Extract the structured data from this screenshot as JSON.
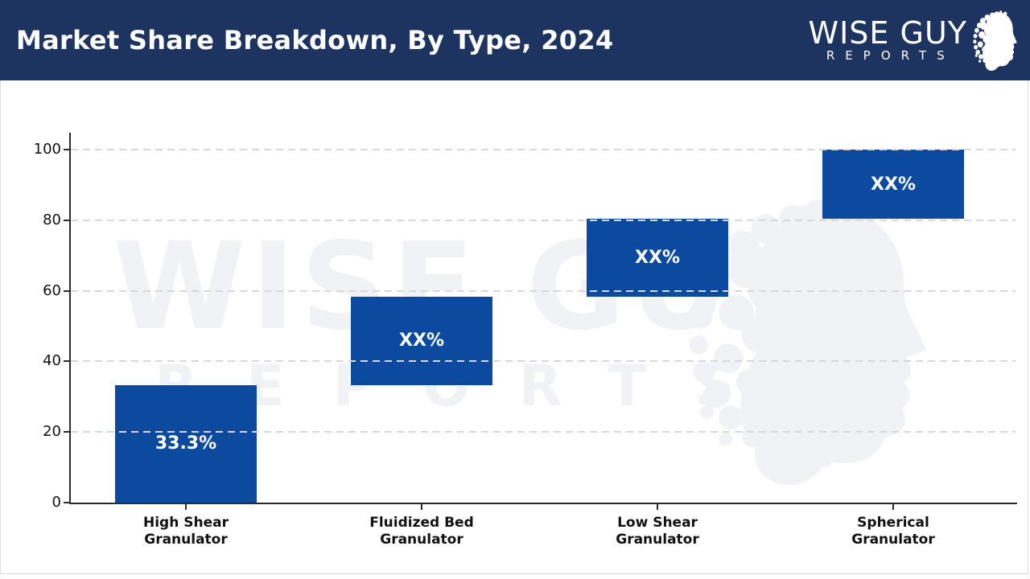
{
  "header": {
    "title": "Market Share Breakdown, By Type, 2024",
    "brand": {
      "name": "WISE GUY",
      "tagline": "REPORTS"
    },
    "colors": {
      "background": "#1d3360",
      "text": "#ffffff"
    }
  },
  "watermark": {
    "name": "WISE GUY",
    "tagline": "REPORTS"
  },
  "chart_data": {
    "type": "bar",
    "variant": "waterfall",
    "title": "Market Share Breakdown, By Type, 2024",
    "categories": [
      "High Shear Granulator",
      "Fluidized Bed Granulator",
      "Low Shear Granulator",
      "Spherical Granulator"
    ],
    "bars": [
      {
        "category": "High Shear Granulator",
        "label": "33.3%",
        "start": 0,
        "end": 33.3
      },
      {
        "category": "Fluidized Bed Granulator",
        "label": "XX%",
        "start": 33.3,
        "end": 58.3
      },
      {
        "category": "Low Shear Granulator",
        "label": "XX%",
        "start": 58.3,
        "end": 80.3
      },
      {
        "category": "Spherical Granulator",
        "label": "XX%",
        "start": 80.3,
        "end": 100
      }
    ],
    "xlabel": "",
    "ylabel": "",
    "ylim": [
      0,
      100
    ],
    "yticks": [
      0,
      20,
      40,
      60,
      80,
      100
    ],
    "grid": "horizontal-dashed",
    "legend": "none",
    "bar_color": "#0b4a9e",
    "value_label_color": "#ffffff",
    "axis_color": "#2a2a2a",
    "grid_color": "#d8d8d8",
    "watermark_color": "#f1f2f5"
  }
}
